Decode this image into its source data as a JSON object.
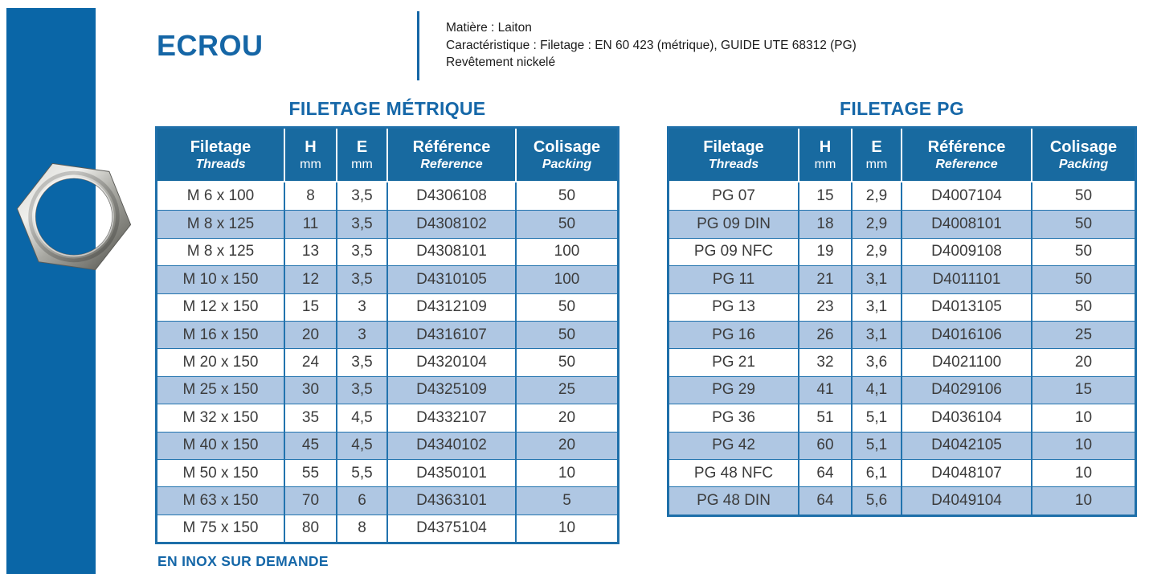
{
  "header": {
    "title": "ECROU",
    "specs": [
      "Matière : Laiton",
      "Caractéristique : Filetage : EN 60 423 (métrique), GUIDE UTE 68312 (PG)",
      "Revêtement nickelé"
    ]
  },
  "columns": {
    "filetage": {
      "fr": "Filetage",
      "en": "Threads"
    },
    "h": {
      "label": "H",
      "unit": "mm"
    },
    "e": {
      "label": "E",
      "unit": "mm"
    },
    "reference": {
      "fr": "Référence",
      "en": "Reference"
    },
    "colisage": {
      "fr": "Colisage",
      "en": "Packing"
    }
  },
  "tables": [
    {
      "title": "FILETAGE MÉTRIQUE",
      "rows": [
        [
          "M 6 x 100",
          "8",
          "3,5",
          "D4306108",
          "50"
        ],
        [
          "M 8 x 125",
          "11",
          "3,5",
          "D4308102",
          "50"
        ],
        [
          "M 8 x 125",
          "13",
          "3,5",
          "D4308101",
          "100"
        ],
        [
          "M 10 x 150",
          "12",
          "3,5",
          "D4310105",
          "100"
        ],
        [
          "M 12 x 150",
          "15",
          "3",
          "D4312109",
          "50"
        ],
        [
          "M 16 x 150",
          "20",
          "3",
          "D4316107",
          "50"
        ],
        [
          "M 20 x 150",
          "24",
          "3,5",
          "D4320104",
          "50"
        ],
        [
          "M 25 x 150",
          "30",
          "3,5",
          "D4325109",
          "25"
        ],
        [
          "M 32 x 150",
          "35",
          "4,5",
          "D4332107",
          "20"
        ],
        [
          "M 40 x 150",
          "45",
          "4,5",
          "D4340102",
          "20"
        ],
        [
          "M 50 x 150",
          "55",
          "5,5",
          "D4350101",
          "10"
        ],
        [
          "M 63 x 150",
          "70",
          "6",
          "D4363101",
          "5"
        ],
        [
          "M 75 x 150",
          "80",
          "8",
          "D4375104",
          "10"
        ]
      ]
    },
    {
      "title": "FILETAGE PG",
      "rows": [
        [
          "PG 07",
          "15",
          "2,9",
          "D4007104",
          "50"
        ],
        [
          "PG 09 DIN",
          "18",
          "2,9",
          "D4008101",
          "50"
        ],
        [
          "PG 09 NFC",
          "19",
          "2,9",
          "D4009108",
          "50"
        ],
        [
          "PG 11",
          "21",
          "3,1",
          "D4011101",
          "50"
        ],
        [
          "PG 13",
          "23",
          "3,1",
          "D4013105",
          "50"
        ],
        [
          "PG 16",
          "26",
          "3,1",
          "D4016106",
          "25"
        ],
        [
          "PG 21",
          "32",
          "3,6",
          "D4021100",
          "20"
        ],
        [
          "PG 29",
          "41",
          "4,1",
          "D4029106",
          "15"
        ],
        [
          "PG 36",
          "51",
          "5,1",
          "D4036104",
          "10"
        ],
        [
          "PG 42",
          "60",
          "5,1",
          "D4042105",
          "10"
        ],
        [
          "PG 48 NFC",
          "64",
          "6,1",
          "D4048107",
          "10"
        ],
        [
          "PG 48 DIN",
          "64",
          "5,6",
          "D4049104",
          "10"
        ]
      ]
    }
  ],
  "footer": {
    "note": "EN INOX SUR DEMANDE"
  },
  "colors": {
    "sidebar_blue": "#0A66A7",
    "table_header_blue": "#186AA0",
    "border_blue": "#2273AE",
    "row_light_blue": "#AFC7E3",
    "title_blue": "#1567A8",
    "cell_text": "#3C3C3C"
  }
}
